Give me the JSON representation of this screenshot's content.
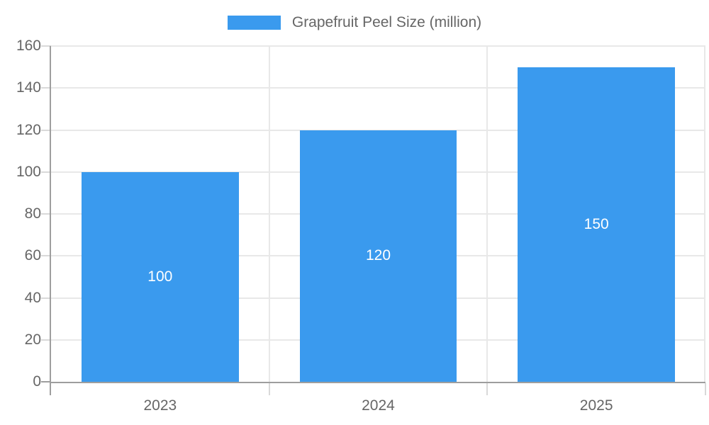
{
  "chart_data": {
    "type": "bar",
    "title": "",
    "legend_label": "Grapefruit Peel Size (million)",
    "legend_position": "top-center",
    "categories": [
      "2023",
      "2024",
      "2025"
    ],
    "series": [
      {
        "name": "Grapefruit Peel Size (million)",
        "values": [
          100,
          120,
          150
        ],
        "data_labels": [
          "100",
          "120",
          "150"
        ]
      }
    ],
    "xlabel": "",
    "ylabel": "",
    "ylim": [
      0,
      160
    ],
    "ytick_step": 20,
    "ytick_labels": [
      "0",
      "20",
      "40",
      "60",
      "80",
      "100",
      "120",
      "140",
      "160"
    ],
    "grid": true,
    "data_labels_shown": true,
    "colors": {
      "bar": "#3A9AEE",
      "axis_text": "#666666",
      "data_label_text": "#ffffff",
      "grid_line": "#e8e8e8",
      "axis_line": "#9e9e9e",
      "tick_mark": "#d9d9d9",
      "background": "#ffffff"
    }
  }
}
